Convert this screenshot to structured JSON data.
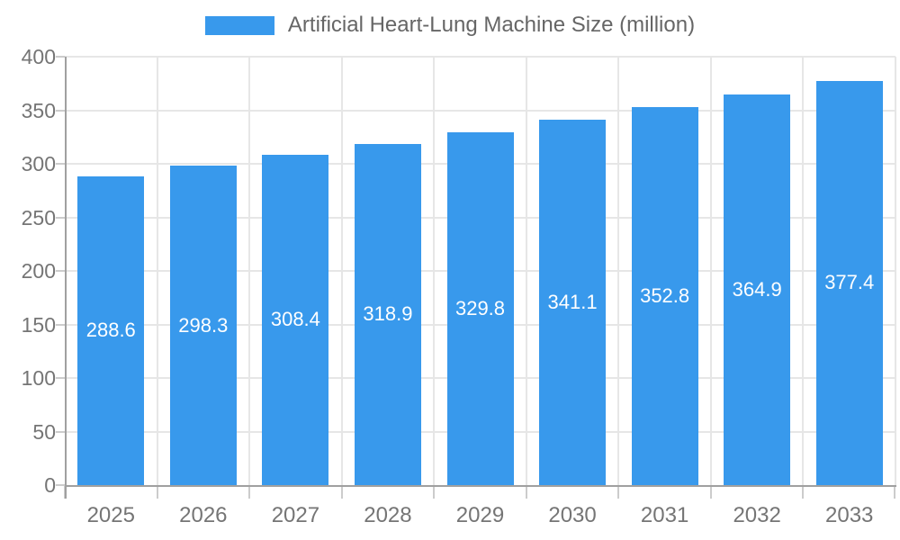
{
  "legend": {
    "label": "Artificial Heart-Lung Machine Size (million)",
    "swatch_color": "#3899ec"
  },
  "chart_data": {
    "type": "bar",
    "title": "Artificial Heart-Lung Machine Size (million)",
    "categories": [
      "2025",
      "2026",
      "2027",
      "2028",
      "2029",
      "2030",
      "2031",
      "2032",
      "2033"
    ],
    "values": [
      288.6,
      298.3,
      308.4,
      318.9,
      329.8,
      341.1,
      352.8,
      364.9,
      377.4
    ],
    "value_labels": [
      "288.6",
      "298.3",
      "308.4",
      "318.9",
      "329.8",
      "341.1",
      "352.8",
      "364.9",
      "377.4"
    ],
    "xlabel": "",
    "ylabel": "",
    "ylim": [
      0,
      400
    ],
    "ytick_step": 50,
    "ytick_labels": [
      "0",
      "50",
      "100",
      "150",
      "200",
      "250",
      "300",
      "350",
      "400"
    ],
    "grid": true,
    "legend_position": "top-center",
    "value_label_position": "center-of-bar"
  },
  "colors": {
    "bar": "#3899ec",
    "grid": "#e6e6e6",
    "axis": "#a0a0a0",
    "tick": "#cccccc",
    "tick_text": "#757575",
    "value_label_text": "#ffffff",
    "legend_text": "#666666",
    "background": "#ffffff"
  }
}
